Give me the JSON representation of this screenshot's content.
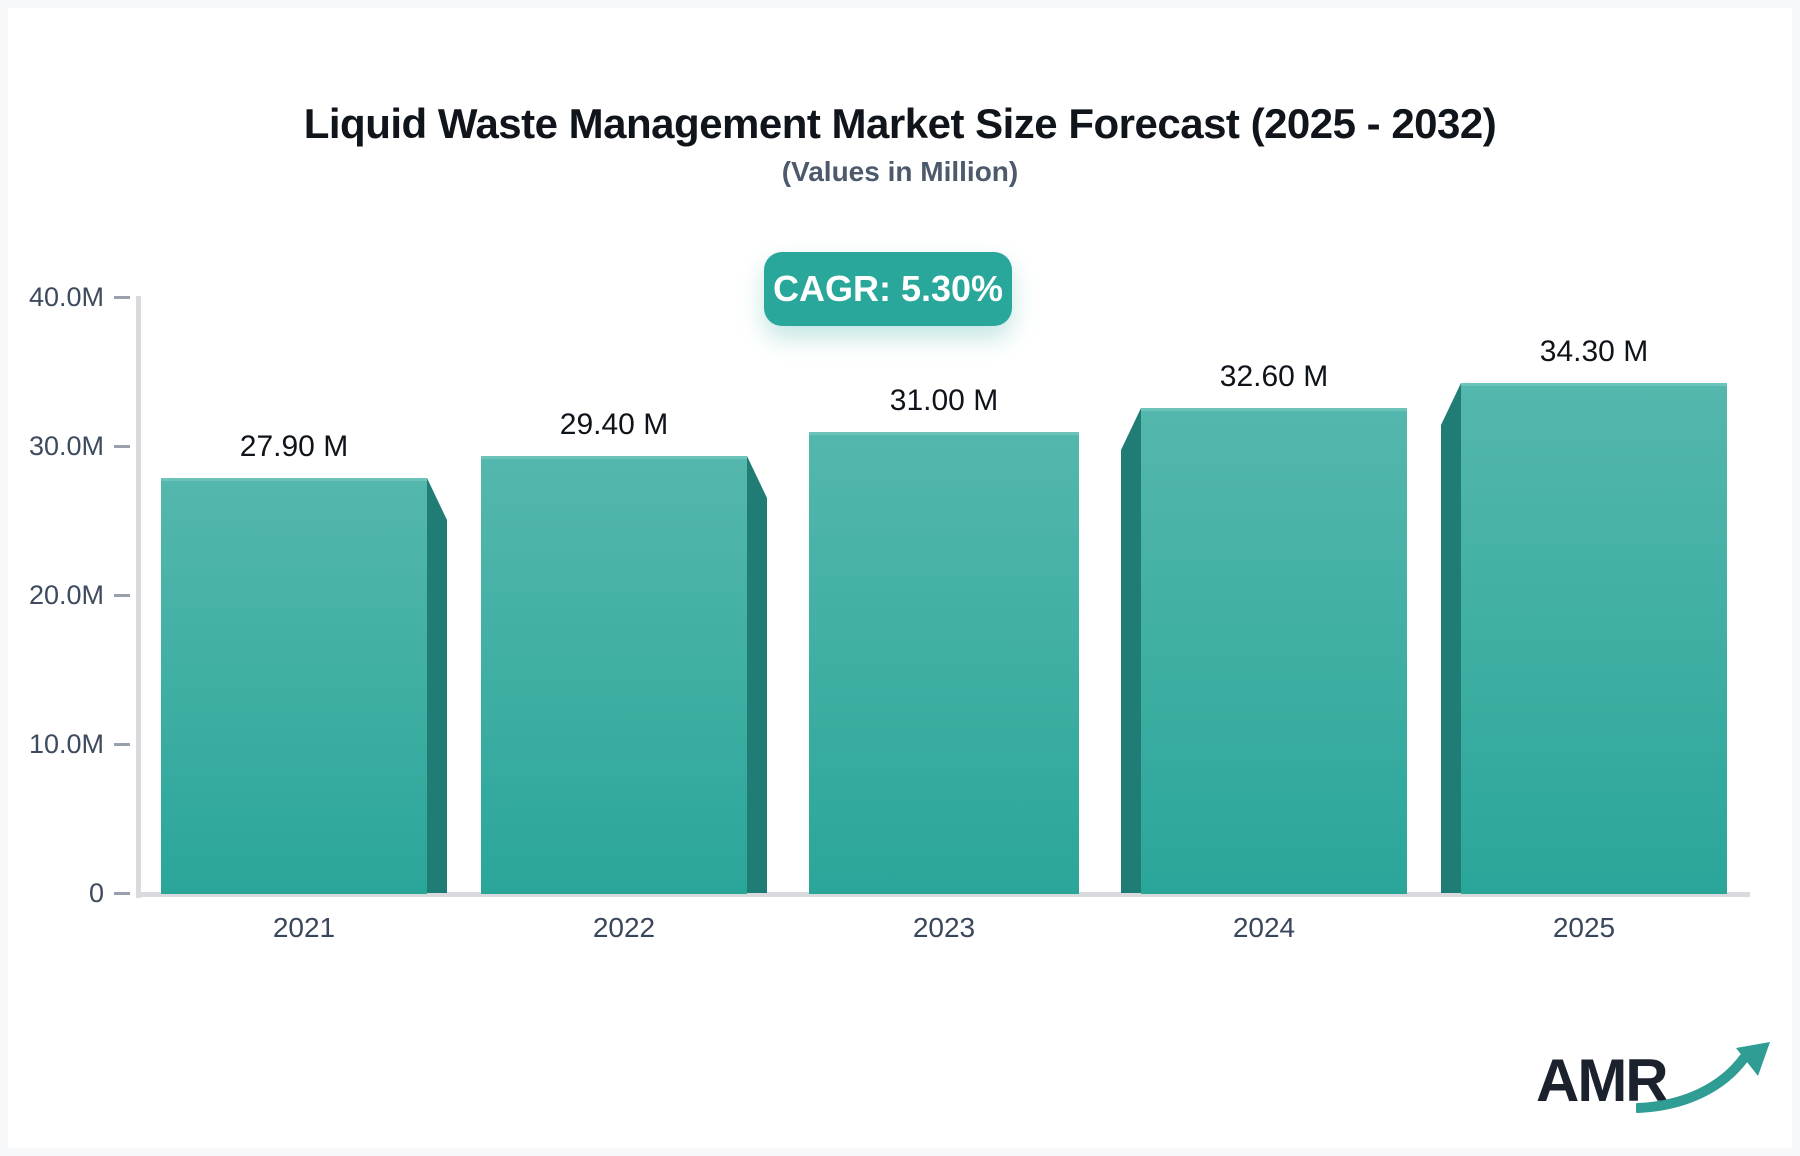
{
  "page": {
    "background_color": "#f7f8fa",
    "card_color": "#ffffff"
  },
  "header": {
    "title": "Liquid Waste Management Market Size Forecast (2025 - 2032)",
    "subtitle": "(Values in Million)"
  },
  "annotation": {
    "cagr_label": "CAGR: 5.30%",
    "badge_color": "#2aa79b",
    "text_color": "#ffffff"
  },
  "chart_data": {
    "type": "bar",
    "title": "Liquid Waste Management Market Size Forecast (2025 - 2032)",
    "subtitle": "(Values in Million)",
    "categories": [
      "2021",
      "2022",
      "2023",
      "2024",
      "2025"
    ],
    "values": [
      27.9,
      29.4,
      31.0,
      32.6,
      34.3
    ],
    "bar_labels": [
      "27.90 M",
      "29.40 M",
      "31.00 M",
      "32.60 M",
      "34.30 M"
    ],
    "unit": "Million",
    "xlabel": "",
    "ylabel": "",
    "ylim": [
      0,
      40
    ],
    "yticks": [
      0,
      10,
      20,
      30,
      40
    ],
    "ytick_labels": [
      "0",
      "10.0M",
      "20.0M",
      "30.0M",
      "40.0M"
    ],
    "grid": false,
    "legend": false,
    "bar_color_top": "#54b7ad",
    "bar_color_bottom": "#2aa699",
    "bar_side_color": "#1f7d75",
    "axis_color": "#d8dade",
    "tick_color": "#97a0ab",
    "ytick_text_color": "#3e4a5e",
    "xtick_text_color": "#3a465c",
    "value_text_color": "#0f141b"
  },
  "branding": {
    "logo_text": "AMR",
    "logo_text_color": "#1b222e",
    "logo_arrow_color": "#2f9d93"
  }
}
